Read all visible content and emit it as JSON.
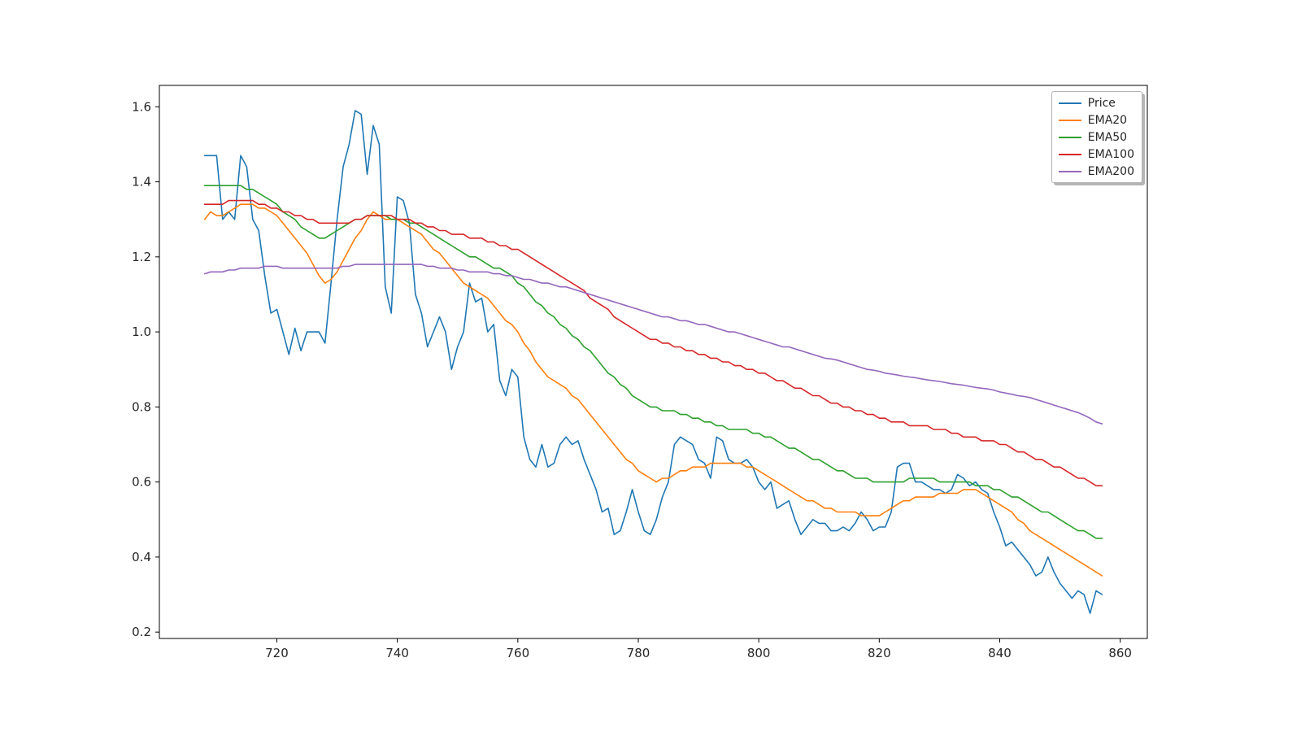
{
  "chart_data": {
    "type": "line",
    "title": "",
    "xlabel": "",
    "ylabel": "",
    "xlim": [
      700.5,
      864.5
    ],
    "ylim": [
      0.183,
      1.657
    ],
    "xticks": [
      720,
      740,
      760,
      780,
      800,
      820,
      840,
      860
    ],
    "yticks": [
      0.2,
      0.4,
      0.6,
      0.8,
      1.0,
      1.2,
      1.4,
      1.6
    ],
    "grid": false,
    "legend_position": "upper right",
    "x": {
      "start": 708,
      "step": 1,
      "count": 150
    },
    "series": [
      {
        "name": "Price",
        "color": "#1f77b4",
        "values": [
          1.47,
          1.47,
          1.47,
          1.3,
          1.32,
          1.3,
          1.47,
          1.44,
          1.3,
          1.27,
          1.15,
          1.05,
          1.06,
          1.0,
          0.94,
          1.01,
          0.95,
          1.0,
          1.0,
          1.0,
          0.97,
          1.13,
          1.3,
          1.44,
          1.5,
          1.59,
          1.58,
          1.42,
          1.55,
          1.5,
          1.12,
          1.05,
          1.36,
          1.35,
          1.29,
          1.1,
          1.05,
          0.96,
          1.0,
          1.04,
          1.0,
          0.9,
          0.96,
          1.0,
          1.13,
          1.08,
          1.09,
          1.0,
          1.02,
          0.87,
          0.83,
          0.9,
          0.88,
          0.72,
          0.66,
          0.64,
          0.7,
          0.64,
          0.65,
          0.7,
          0.72,
          0.7,
          0.71,
          0.66,
          0.62,
          0.58,
          0.52,
          0.53,
          0.46,
          0.47,
          0.52,
          0.58,
          0.52,
          0.47,
          0.46,
          0.5,
          0.56,
          0.6,
          0.7,
          0.72,
          0.71,
          0.7,
          0.66,
          0.65,
          0.61,
          0.72,
          0.71,
          0.66,
          0.65,
          0.65,
          0.66,
          0.64,
          0.6,
          0.58,
          0.6,
          0.53,
          0.54,
          0.55,
          0.5,
          0.46,
          0.48,
          0.5,
          0.49,
          0.49,
          0.47,
          0.47,
          0.48,
          0.47,
          0.49,
          0.52,
          0.5,
          0.47,
          0.48,
          0.48,
          0.52,
          0.64,
          0.65,
          0.65,
          0.6,
          0.6,
          0.59,
          0.58,
          0.58,
          0.57,
          0.58,
          0.62,
          0.61,
          0.59,
          0.6,
          0.58,
          0.57,
          0.52,
          0.48,
          0.43,
          0.44,
          0.42,
          0.4,
          0.38,
          0.35,
          0.36,
          0.4,
          0.36,
          0.33,
          0.31,
          0.29,
          0.31,
          0.3,
          0.25,
          0.31,
          0.3
        ]
      },
      {
        "name": "EMA20",
        "color": "#ff7f0e",
        "values": [
          1.3,
          1.32,
          1.31,
          1.31,
          1.32,
          1.33,
          1.34,
          1.34,
          1.34,
          1.33,
          1.33,
          1.32,
          1.31,
          1.29,
          1.27,
          1.25,
          1.23,
          1.21,
          1.18,
          1.15,
          1.13,
          1.14,
          1.16,
          1.19,
          1.22,
          1.25,
          1.27,
          1.3,
          1.32,
          1.31,
          1.3,
          1.3,
          1.3,
          1.29,
          1.28,
          1.27,
          1.26,
          1.24,
          1.22,
          1.21,
          1.19,
          1.17,
          1.15,
          1.13,
          1.12,
          1.11,
          1.1,
          1.09,
          1.07,
          1.05,
          1.03,
          1.02,
          1.0,
          0.97,
          0.95,
          0.92,
          0.9,
          0.88,
          0.87,
          0.86,
          0.85,
          0.83,
          0.82,
          0.8,
          0.78,
          0.76,
          0.74,
          0.72,
          0.7,
          0.68,
          0.66,
          0.65,
          0.63,
          0.62,
          0.61,
          0.6,
          0.61,
          0.61,
          0.62,
          0.63,
          0.63,
          0.64,
          0.64,
          0.64,
          0.65,
          0.65,
          0.65,
          0.65,
          0.65,
          0.65,
          0.64,
          0.64,
          0.63,
          0.62,
          0.61,
          0.6,
          0.59,
          0.58,
          0.57,
          0.56,
          0.55,
          0.55,
          0.54,
          0.53,
          0.53,
          0.52,
          0.52,
          0.52,
          0.52,
          0.51,
          0.51,
          0.51,
          0.51,
          0.52,
          0.53,
          0.54,
          0.55,
          0.55,
          0.56,
          0.56,
          0.56,
          0.56,
          0.57,
          0.57,
          0.57,
          0.57,
          0.58,
          0.58,
          0.58,
          0.57,
          0.56,
          0.55,
          0.54,
          0.53,
          0.52,
          0.5,
          0.49,
          0.47,
          0.46,
          0.45,
          0.44,
          0.43,
          0.42,
          0.41,
          0.4,
          0.39,
          0.38,
          0.37,
          0.36,
          0.35
        ]
      },
      {
        "name": "EMA50",
        "color": "#2ca02c",
        "values": [
          1.39,
          1.39,
          1.39,
          1.39,
          1.39,
          1.39,
          1.39,
          1.38,
          1.38,
          1.37,
          1.36,
          1.35,
          1.34,
          1.32,
          1.31,
          1.3,
          1.28,
          1.27,
          1.26,
          1.25,
          1.25,
          1.26,
          1.27,
          1.28,
          1.29,
          1.3,
          1.3,
          1.31,
          1.31,
          1.31,
          1.31,
          1.3,
          1.3,
          1.3,
          1.29,
          1.29,
          1.28,
          1.27,
          1.26,
          1.25,
          1.24,
          1.23,
          1.22,
          1.21,
          1.2,
          1.2,
          1.19,
          1.18,
          1.17,
          1.17,
          1.16,
          1.15,
          1.13,
          1.12,
          1.1,
          1.08,
          1.07,
          1.05,
          1.04,
          1.02,
          1.01,
          0.99,
          0.98,
          0.96,
          0.95,
          0.93,
          0.91,
          0.89,
          0.88,
          0.86,
          0.85,
          0.83,
          0.82,
          0.81,
          0.8,
          0.8,
          0.79,
          0.79,
          0.79,
          0.78,
          0.78,
          0.77,
          0.77,
          0.76,
          0.76,
          0.75,
          0.75,
          0.74,
          0.74,
          0.74,
          0.74,
          0.73,
          0.73,
          0.72,
          0.72,
          0.71,
          0.7,
          0.69,
          0.69,
          0.68,
          0.67,
          0.66,
          0.66,
          0.65,
          0.64,
          0.63,
          0.63,
          0.62,
          0.61,
          0.61,
          0.61,
          0.6,
          0.6,
          0.6,
          0.6,
          0.6,
          0.6,
          0.61,
          0.61,
          0.61,
          0.61,
          0.61,
          0.6,
          0.6,
          0.6,
          0.6,
          0.6,
          0.6,
          0.59,
          0.59,
          0.59,
          0.58,
          0.58,
          0.57,
          0.56,
          0.56,
          0.55,
          0.54,
          0.53,
          0.52,
          0.52,
          0.51,
          0.5,
          0.49,
          0.48,
          0.47,
          0.47,
          0.46,
          0.45,
          0.45
        ]
      },
      {
        "name": "EMA100",
        "color": "#d62728",
        "values": [
          1.34,
          1.34,
          1.34,
          1.34,
          1.35,
          1.35,
          1.35,
          1.35,
          1.35,
          1.34,
          1.34,
          1.33,
          1.33,
          1.32,
          1.32,
          1.31,
          1.31,
          1.3,
          1.3,
          1.29,
          1.29,
          1.29,
          1.29,
          1.29,
          1.29,
          1.3,
          1.3,
          1.31,
          1.31,
          1.31,
          1.31,
          1.31,
          1.3,
          1.3,
          1.3,
          1.29,
          1.29,
          1.28,
          1.28,
          1.27,
          1.27,
          1.26,
          1.26,
          1.26,
          1.25,
          1.25,
          1.25,
          1.24,
          1.24,
          1.23,
          1.23,
          1.22,
          1.22,
          1.21,
          1.2,
          1.19,
          1.18,
          1.17,
          1.16,
          1.15,
          1.14,
          1.13,
          1.12,
          1.11,
          1.09,
          1.08,
          1.07,
          1.06,
          1.04,
          1.03,
          1.02,
          1.01,
          1.0,
          0.99,
          0.98,
          0.98,
          0.97,
          0.97,
          0.96,
          0.96,
          0.95,
          0.95,
          0.94,
          0.94,
          0.93,
          0.93,
          0.92,
          0.92,
          0.91,
          0.91,
          0.9,
          0.9,
          0.89,
          0.89,
          0.88,
          0.87,
          0.87,
          0.86,
          0.85,
          0.85,
          0.84,
          0.83,
          0.83,
          0.82,
          0.81,
          0.81,
          0.8,
          0.8,
          0.79,
          0.79,
          0.78,
          0.78,
          0.77,
          0.77,
          0.76,
          0.76,
          0.76,
          0.75,
          0.75,
          0.75,
          0.75,
          0.74,
          0.74,
          0.74,
          0.73,
          0.73,
          0.72,
          0.72,
          0.72,
          0.71,
          0.71,
          0.71,
          0.7,
          0.7,
          0.69,
          0.68,
          0.68,
          0.67,
          0.66,
          0.66,
          0.65,
          0.64,
          0.64,
          0.63,
          0.62,
          0.61,
          0.61,
          0.6,
          0.59,
          0.59
        ]
      },
      {
        "name": "EMA200",
        "color": "#9467bd",
        "values": [
          1.155,
          1.16,
          1.16,
          1.16,
          1.165,
          1.165,
          1.17,
          1.17,
          1.17,
          1.17,
          1.175,
          1.175,
          1.175,
          1.17,
          1.17,
          1.17,
          1.17,
          1.17,
          1.17,
          1.17,
          1.17,
          1.17,
          1.17,
          1.175,
          1.175,
          1.18,
          1.18,
          1.18,
          1.18,
          1.18,
          1.18,
          1.18,
          1.18,
          1.18,
          1.18,
          1.18,
          1.18,
          1.175,
          1.175,
          1.17,
          1.17,
          1.17,
          1.165,
          1.165,
          1.16,
          1.16,
          1.16,
          1.16,
          1.155,
          1.155,
          1.15,
          1.15,
          1.145,
          1.14,
          1.14,
          1.135,
          1.13,
          1.13,
          1.125,
          1.12,
          1.12,
          1.115,
          1.11,
          1.105,
          1.1,
          1.095,
          1.09,
          1.085,
          1.08,
          1.075,
          1.07,
          1.065,
          1.06,
          1.055,
          1.05,
          1.045,
          1.04,
          1.04,
          1.035,
          1.03,
          1.03,
          1.025,
          1.02,
          1.02,
          1.015,
          1.01,
          1.005,
          1.0,
          1.0,
          0.995,
          0.99,
          0.985,
          0.98,
          0.975,
          0.97,
          0.965,
          0.96,
          0.96,
          0.955,
          0.95,
          0.945,
          0.94,
          0.935,
          0.93,
          0.928,
          0.925,
          0.92,
          0.915,
          0.91,
          0.905,
          0.9,
          0.898,
          0.895,
          0.89,
          0.888,
          0.885,
          0.882,
          0.88,
          0.878,
          0.875,
          0.872,
          0.87,
          0.868,
          0.865,
          0.862,
          0.86,
          0.858,
          0.855,
          0.852,
          0.85,
          0.848,
          0.845,
          0.84,
          0.837,
          0.834,
          0.83,
          0.828,
          0.825,
          0.82,
          0.815,
          0.81,
          0.805,
          0.8,
          0.795,
          0.79,
          0.785,
          0.778,
          0.77,
          0.76,
          0.755
        ]
      }
    ]
  }
}
